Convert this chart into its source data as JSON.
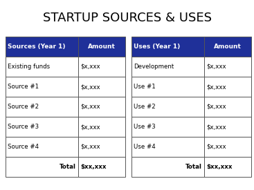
{
  "title": "STARTUP SOURCES & USES",
  "title_fontsize": 13,
  "background_color": "#ffffff",
  "header_bg_color": "#1f3099",
  "header_text_color": "#ffffff",
  "cell_text_color": "#000000",
  "border_color": "#555555",
  "sources_headers": [
    "Sources (Year 1)",
    "Amount"
  ],
  "sources_rows": [
    [
      "Existing funds",
      "$x,xxx"
    ],
    [
      "Source #1",
      "$x,xxx"
    ],
    [
      "Source #2",
      "$x,xxx"
    ],
    [
      "Source #3",
      "$x,xxx"
    ],
    [
      "Source #4",
      "$x,xxx"
    ]
  ],
  "sources_total": [
    "Total",
    "$xx,xxx"
  ],
  "uses_headers": [
    "Uses (Year 1)",
    "Amount"
  ],
  "uses_rows": [
    [
      "Development",
      "$x,xxx"
    ],
    [
      "Use #1",
      "$x,xxx"
    ],
    [
      "Use #2",
      "$x,xxx"
    ],
    [
      "Use #3",
      "$x,xxx"
    ],
    [
      "Use #4",
      "$x,xxx"
    ]
  ],
  "uses_total": [
    "Total",
    "$xx,xxx"
  ],
  "header_font_size": 6.5,
  "cell_font_size": 6.2,
  "total_font_size": 6.2
}
